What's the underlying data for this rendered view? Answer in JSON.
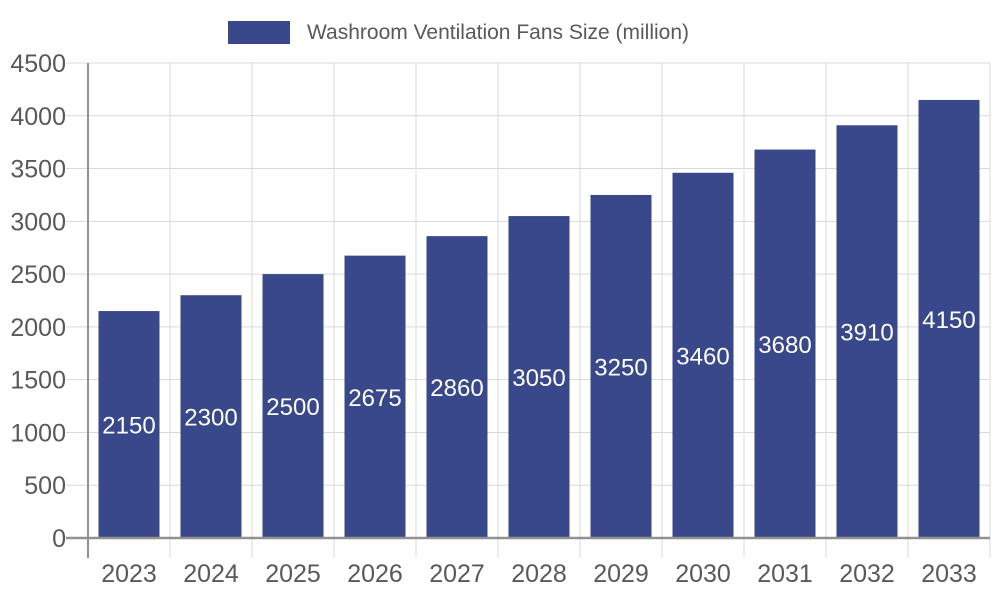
{
  "chart_data": {
    "type": "bar",
    "title": "Washroom Ventilation Fans Size (million)",
    "categories": [
      "2023",
      "2024",
      "2025",
      "2026",
      "2027",
      "2028",
      "2029",
      "2030",
      "2031",
      "2032",
      "2033"
    ],
    "values": [
      2150,
      2300,
      2500,
      2675,
      2860,
      3050,
      3250,
      3460,
      3680,
      3910,
      4150
    ],
    "series": [
      {
        "name": "Washroom Ventilation Fans Size (million)",
        "values": [
          2150,
          2300,
          2500,
          2675,
          2860,
          3050,
          3250,
          3460,
          3680,
          3910,
          4150
        ]
      }
    ],
    "xlabel": "",
    "ylabel": "",
    "ylim": [
      0,
      4500
    ],
    "yticks": [
      0,
      500,
      1000,
      1500,
      2000,
      2500,
      3000,
      3500,
      4000,
      4500
    ],
    "grid": true,
    "legend_position": "top",
    "value_labels_shown": true,
    "colors": {
      "bar": "#39488B",
      "value_label": "#FFFFFF",
      "axis_text": "#595959",
      "grid_line": "#D9D9D9",
      "axis_line": "#919191",
      "background": "#FFFFFF"
    }
  }
}
